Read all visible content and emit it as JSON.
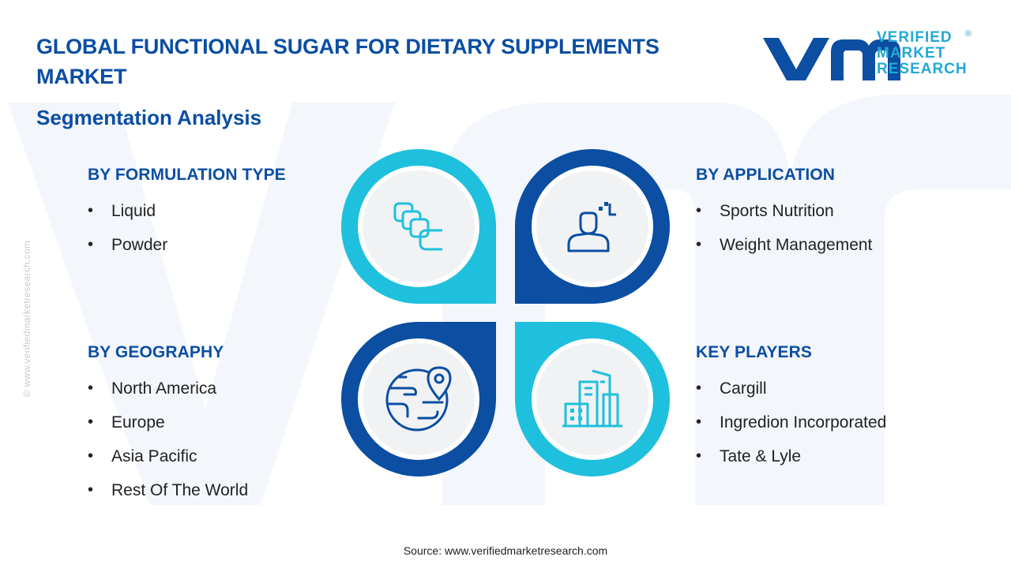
{
  "header": {
    "title": "GLOBAL FUNCTIONAL SUGAR FOR DIETARY SUPPLEMENTS MARKET",
    "subtitle": "Segmentation Analysis"
  },
  "logo": {
    "lines": [
      "VERIFIED",
      "MARKET",
      "RESEARCH"
    ],
    "registered": "®"
  },
  "side_url": "© www.verifiedmarketresearch.com",
  "segments": {
    "formulation": {
      "title": "BY FORMULATION TYPE",
      "items": [
        "Liquid",
        "Powder"
      ],
      "icon": "stacked-squares-icon"
    },
    "application": {
      "title": "BY APPLICATION",
      "items": [
        "Sports Nutrition",
        "Weight Management"
      ],
      "icon": "person-icon"
    },
    "geography": {
      "title": "BY GEOGRAPHY",
      "items": [
        "North America",
        "Europe",
        "Asia Pacific",
        "Rest Of The World"
      ],
      "icon": "globe-pin-icon"
    },
    "players": {
      "title": "KEY PLAYERS",
      "items": [
        "Cargill",
        "Ingredion Incorporated",
        "Tate & Lyle"
      ],
      "icon": "buildings-icon"
    }
  },
  "colors": {
    "dark_blue": "#0b4ea2",
    "light_blue": "#1fc0dd",
    "circle_fill": "#f1f2f4",
    "watermark": "#f3f6fa"
  },
  "source": "Source:  www.verifiedmarketresearch.com"
}
